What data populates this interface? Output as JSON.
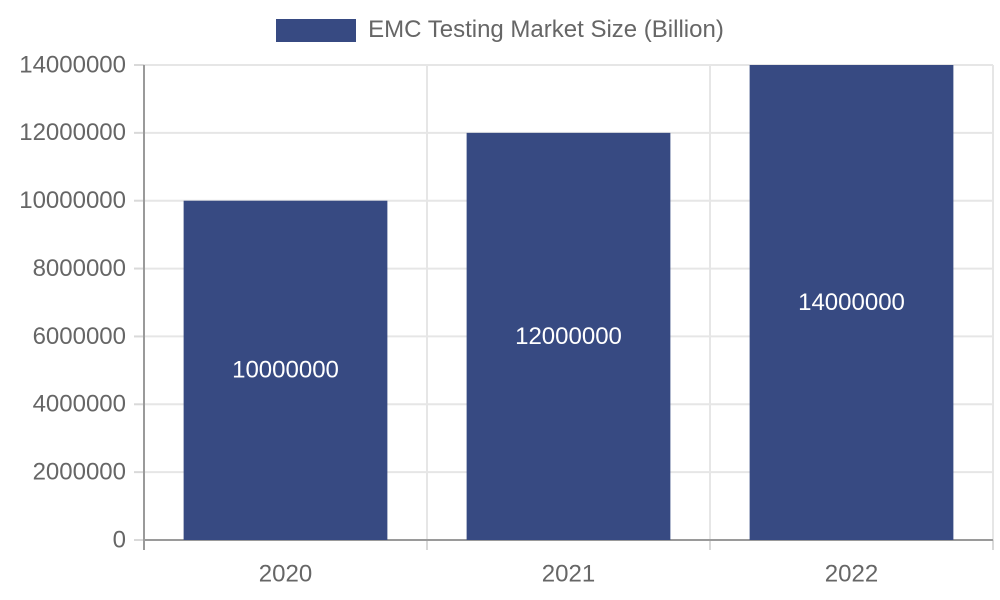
{
  "chart_data": {
    "type": "bar",
    "title": "EMC Testing Market Size (Billion)",
    "legend": [
      "EMC Testing Market Size (Billion)"
    ],
    "legend_position": "top-center",
    "categories": [
      "2020",
      "2021",
      "2022"
    ],
    "series": [
      {
        "name": "EMC Testing Market Size (Billion)",
        "values": [
          10000000,
          12000000,
          14000000
        ]
      }
    ],
    "data_labels": [
      "10000000",
      "12000000",
      "14000000"
    ],
    "data_label_placement": "inside-center",
    "y_tick_labels": [
      "0",
      "2000000",
      "4000000",
      "6000000",
      "8000000",
      "10000000",
      "12000000",
      "14000000"
    ],
    "ylim": [
      0,
      14000000
    ],
    "y_tick_step": 2000000,
    "xlabel": "",
    "ylabel": "",
    "grid": true
  },
  "colors": {
    "bar": "#374A82",
    "grid": "#E6E6E6",
    "tick": "#D9D9D9",
    "axis": "#9A9A9A",
    "text": "#666666",
    "value_label": "#FFFFFF",
    "background": "#FFFFFF"
  }
}
